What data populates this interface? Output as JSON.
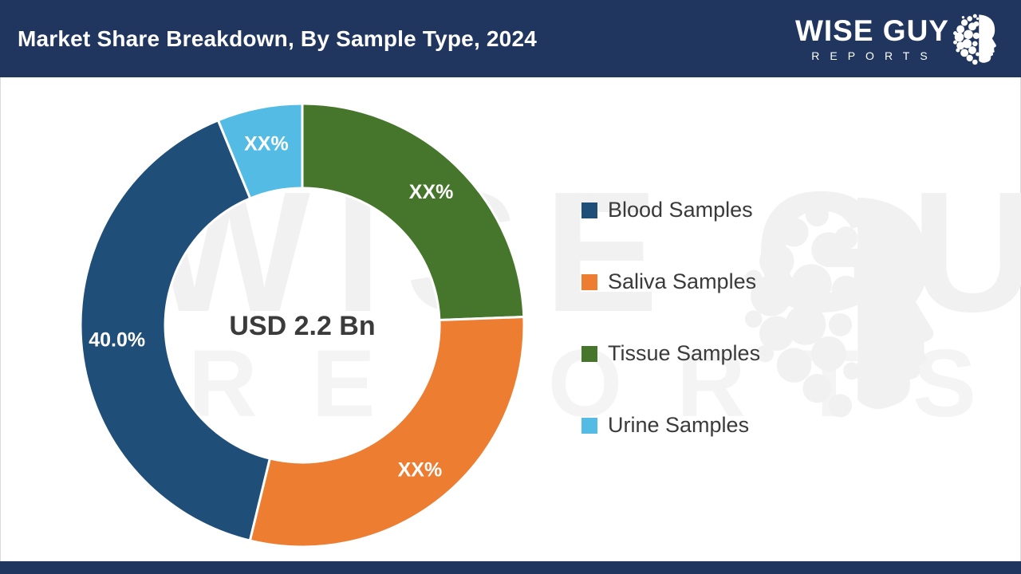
{
  "header": {
    "title": "Market Share Breakdown, By Sample Type, 2024",
    "logo": {
      "line1": "WISE GUY",
      "line2": "REPORTS"
    }
  },
  "watermark": {
    "line1": "WISE GUY",
    "line2": "REPORTS"
  },
  "chart_data": {
    "type": "pie",
    "subtype": "donut",
    "title": "Market Share Breakdown, By Sample Type, 2024",
    "center_label": "USD 2.2 Bn",
    "legend_position": "right",
    "start_angle_deg": 0,
    "direction": "clockwise",
    "draw_order_from_top": [
      "Tissue Samples",
      "Saliva Samples",
      "Blood Samples",
      "Urine Samples"
    ],
    "segments": [
      {
        "name": "Blood Samples",
        "label": "40.0%",
        "percent": 40.0,
        "color": "#1F4E79"
      },
      {
        "name": "Saliva Samples",
        "label": "XX%",
        "percent": 29.4,
        "color": "#ED7D31"
      },
      {
        "name": "Tissue Samples",
        "label": "XX%",
        "percent": 24.4,
        "color": "#46762B"
      },
      {
        "name": "Urine Samples",
        "label": "XX%",
        "percent": 6.2,
        "color": "#54BCE4"
      }
    ]
  },
  "colors": {
    "header_bg": "#20365F",
    "footer_bg": "#20365F",
    "watermark": "#F1F1F1",
    "border": "#D9D9D9"
  }
}
